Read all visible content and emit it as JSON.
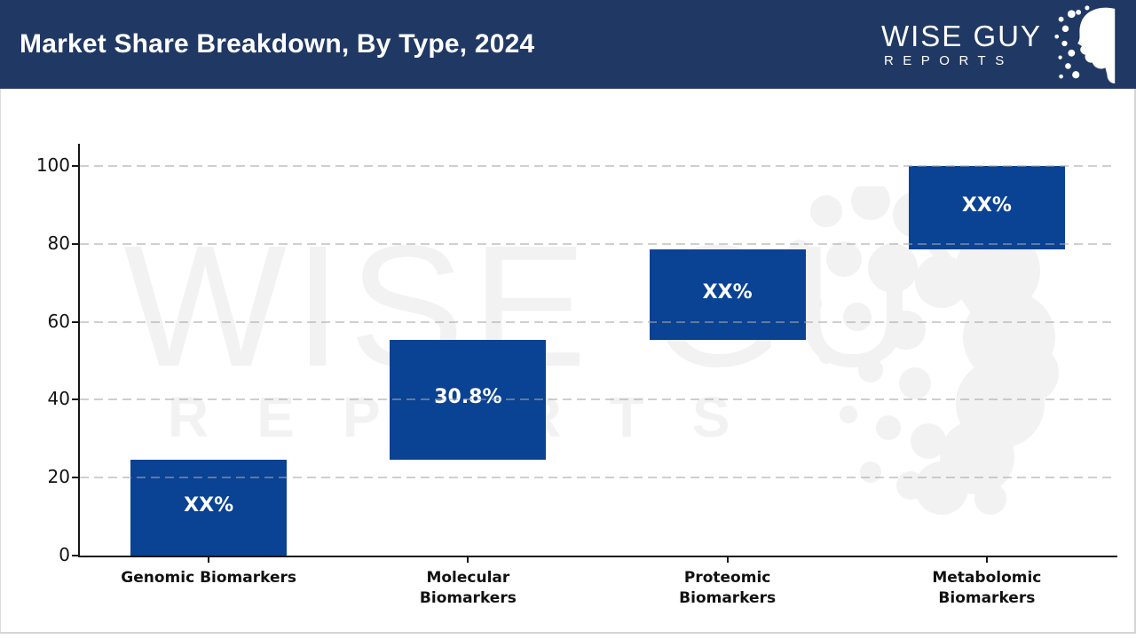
{
  "header": {
    "title": "Market Share Breakdown, By Type, 2024",
    "bg_color": "#203864",
    "logo": {
      "line1": "WISE GUY",
      "line2": "REPORTS"
    }
  },
  "watermark": {
    "line1": "WISE GUY",
    "line2": "REPORTS"
  },
  "chart_data": {
    "type": "bar",
    "subtype": "floating-waterfall",
    "title": "Market Share Breakdown, By Type, 2024",
    "categories": [
      "Genomic Biomarkers",
      "Molecular Biomarkers",
      "Proteomic Biomarkers",
      "Metabolomic Biomarkers"
    ],
    "tick_labels": [
      "Genomic Biomarkers",
      "Molecular\nBiomarkers",
      "Proteomic\nBiomarkers",
      "Metabolomic\nBiomarkers"
    ],
    "segments": [
      {
        "start": 0,
        "end": 24.6,
        "label": "XX%"
      },
      {
        "start": 24.6,
        "end": 55.4,
        "label": "30.8%"
      },
      {
        "start": 55.4,
        "end": 78.7,
        "label": "XX%"
      },
      {
        "start": 78.7,
        "end": 100,
        "label": "XX%"
      }
    ],
    "xlabel": "",
    "ylabel": "",
    "yticks": [
      0,
      20,
      40,
      60,
      80,
      100
    ],
    "ylim": [
      0,
      105.7
    ],
    "grid": "horizontal-dashed",
    "legend": "none",
    "bar_color": "#0a4294",
    "label_color": "#ffffff",
    "axis_color": "#151515",
    "grid_color": "#d9d9d9"
  }
}
